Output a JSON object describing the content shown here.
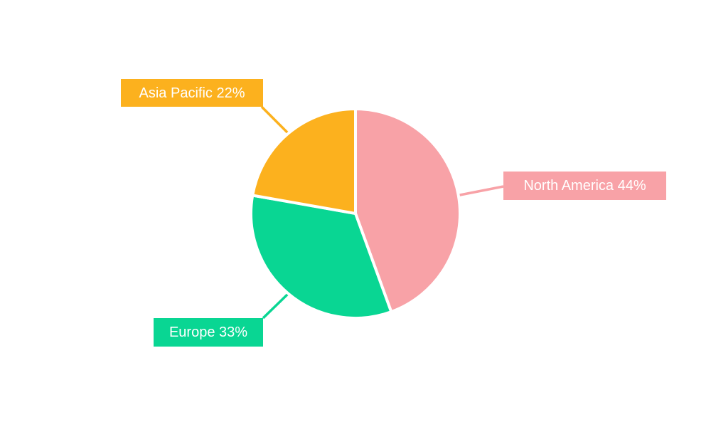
{
  "chart_data": {
    "type": "pie",
    "title": "",
    "categories": [
      "North America",
      "Europe",
      "Asia Pacific"
    ],
    "values": [
      44,
      33,
      22
    ],
    "unit": "%",
    "colors": [
      "#F8A2A7",
      "#09D693",
      "#FCB11E"
    ],
    "labels": [
      {
        "text": "North America 44%"
      },
      {
        "text": "Europe 33%"
      },
      {
        "text": "Asia Pacific 22%"
      }
    ],
    "label_text_color": "#FFFFFF",
    "background": "#FFFFFF",
    "legend_position": "callout-labels",
    "slice_border_color": "#FFFFFF",
    "start_angle_deg": 0,
    "direction": "clockwise"
  }
}
